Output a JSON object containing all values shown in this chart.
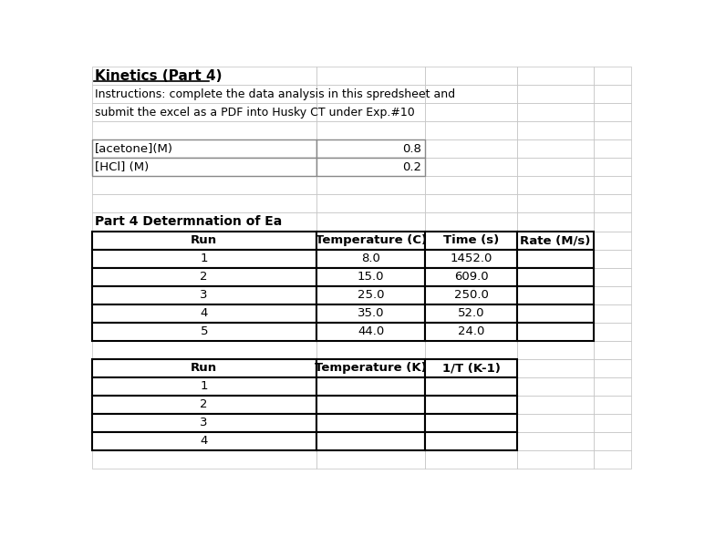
{
  "title": "Kinetics (Part 4)",
  "instructions_line1": "Instructions: complete the data analysis in this spredsheet and",
  "instructions_line2": "submit the excel as a PDF into Husky CT under Exp.#10",
  "acetone_label": "[acetone](M)",
  "acetone_value": "0.8",
  "hcl_label": "[HCl] (M)",
  "hcl_value": "0.2",
  "section_title": "Part 4 Determnation of Ea",
  "table1_headers": [
    "Run",
    "Temperature (C)",
    "Time (s)",
    "Rate (M/s)"
  ],
  "table1_data": [
    [
      "1",
      "8.0",
      "1452.0",
      ""
    ],
    [
      "2",
      "15.0",
      "609.0",
      ""
    ],
    [
      "3",
      "25.0",
      "250.0",
      ""
    ],
    [
      "4",
      "35.0",
      "52.0",
      ""
    ],
    [
      "5",
      "44.0",
      "24.0",
      ""
    ]
  ],
  "table2_headers": [
    "Run",
    "Temperature (K)",
    "1/T (K-1)"
  ],
  "table2_data": [
    [
      "1",
      "",
      ""
    ],
    [
      "2",
      "",
      ""
    ],
    [
      "3",
      "",
      ""
    ],
    [
      "4",
      "",
      ""
    ]
  ],
  "bg_color": "#ffffff",
  "light_grid": "#c0c0c0",
  "dark_grid": "#000000",
  "font_color": "#000000",
  "c0": 318,
  "c1": 154,
  "c2": 130,
  "c3": 108,
  "c4": 53,
  "lm": 5,
  "rh": 26
}
